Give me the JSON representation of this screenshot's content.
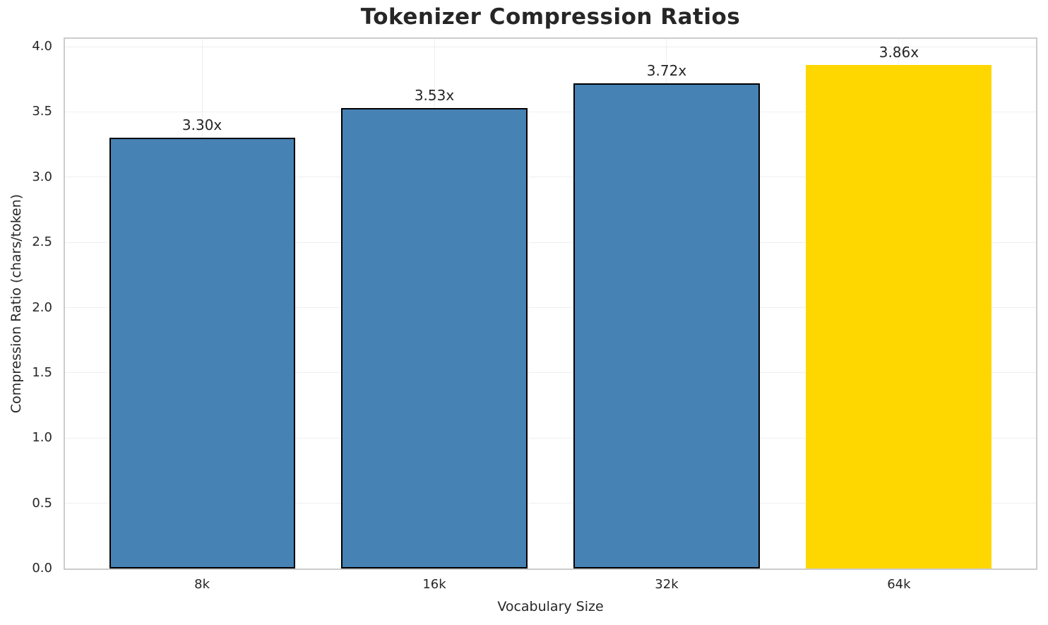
{
  "chart_data": {
    "type": "bar",
    "title": "Tokenizer Compression Ratios",
    "xlabel": "Vocabulary Size",
    "ylabel": "Compression Ratio (chars/token)",
    "categories": [
      "8k",
      "16k",
      "32k",
      "64k"
    ],
    "values": [
      3.3,
      3.53,
      3.72,
      3.86
    ],
    "bar_labels": [
      "3.30x",
      "3.53x",
      "3.72x",
      "3.86x"
    ],
    "ytick_values": [
      0.0,
      0.5,
      1.0,
      1.5,
      2.0,
      2.5,
      3.0,
      3.5,
      4.0
    ],
    "ytick_labels": [
      "0.0",
      "0.5",
      "1.0",
      "1.5",
      "2.0",
      "2.5",
      "3.0",
      "3.5",
      "4.0"
    ],
    "ylim": [
      0,
      4.06
    ],
    "xlim": [
      -0.59,
      3.59
    ],
    "bar_width_units": 0.8,
    "grid": true,
    "legend": "none",
    "highlight_index": 3,
    "colors": {
      "bar": "#4682B4",
      "highlight": "#FFD700",
      "bar_edge": "#000000",
      "grid": "#efefef",
      "spine": "#cccccc",
      "text": "#262626"
    }
  }
}
